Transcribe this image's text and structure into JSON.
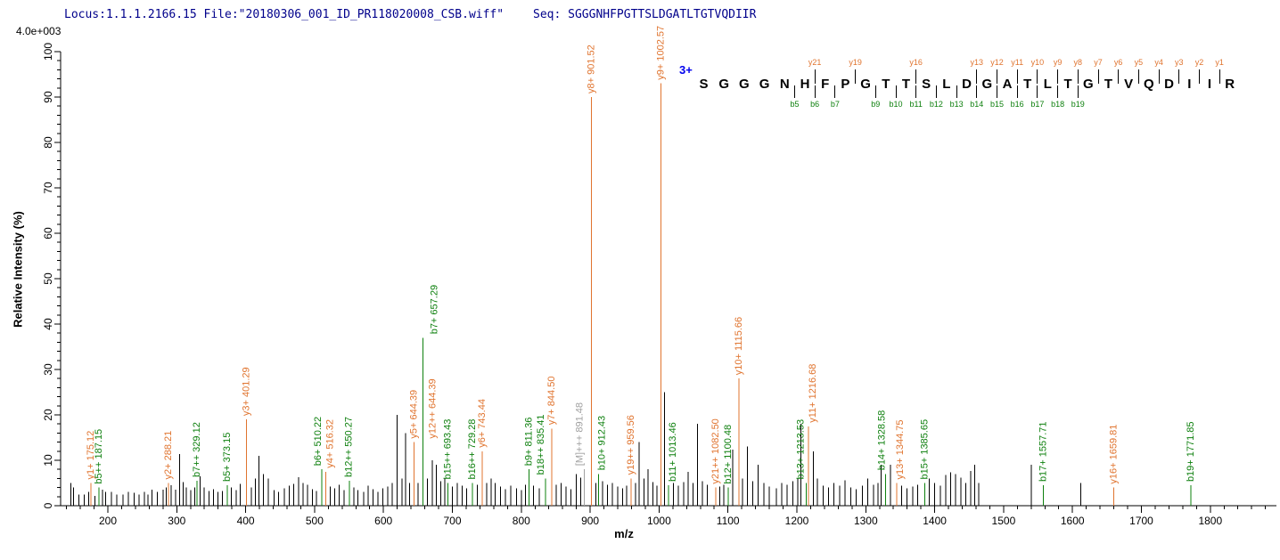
{
  "header": {
    "locus_file": "Locus:1.1.1.2166.15 File:\"20180306_001_ID_PR118020008_CSB.wiff\"",
    "seq_line": "Seq: SGGGNHFPGTTSLDGATLTGTVQDIIR"
  },
  "axis_max_label": "4.0e+003",
  "fragment_display": {
    "charge_label": "3+",
    "residues": "SGGGNHFPGTTSLDGATLTGTVQDIIR",
    "y_ions": {
      "6": "y21",
      "8": "y19",
      "11": "y16",
      "14": "y13",
      "15": "y12",
      "16": "y11",
      "17": "y10",
      "18": "y9",
      "19": "y8",
      "20": "y7",
      "21": "y6",
      "22": "y5",
      "23": "y4",
      "24": "y3",
      "25": "y2",
      "26": "y1"
    },
    "b_ions": {
      "5": "b5",
      "6": "b6",
      "7": "b7",
      "9": "b9",
      "10": "b10",
      "11": "b11",
      "12": "b12",
      "13": "b13",
      "14": "b14",
      "15": "b15",
      "16": "b16",
      "17": "b17",
      "18": "b18",
      "19": "b19"
    }
  },
  "chart_data": {
    "type": "bar",
    "subtype": "ms2-stick-spectrum",
    "title": "",
    "xlabel": "m/z",
    "ylabel": "Relative  Intensity (%)",
    "xlim": [
      135,
      1885
    ],
    "ylim": [
      0,
      100
    ],
    "x_major_tick_step": 100,
    "x_minor_tick_step": 20,
    "x_first_major": 200,
    "x_last_major": 1800,
    "y_major_tick_step": 10,
    "y_minor_tick_step": 2,
    "grid": false,
    "legend": "none",
    "colors": {
      "y_ion": "#e0742f",
      "b_ion": "#0e800e",
      "precursor": "#a0a0a0",
      "unlabeled": "#000000",
      "axis": "#000000"
    },
    "labeled_peaks": [
      {
        "mz": 175.12,
        "intensity": 5,
        "type": "y",
        "label": "y1+ 175.12"
      },
      {
        "mz": 187.15,
        "intensity": 4,
        "type": "b",
        "label": "b5++ 187.15"
      },
      {
        "mz": 288.21,
        "intensity": 5,
        "type": "y",
        "label": "y2+ 288.21"
      },
      {
        "mz": 329.12,
        "intensity": 5.5,
        "type": "b",
        "label": "b7++ 329.12"
      },
      {
        "mz": 373.15,
        "intensity": 4.5,
        "type": "b",
        "label": "b5+ 373.15"
      },
      {
        "mz": 401.29,
        "intensity": 19,
        "type": "y",
        "label": "y3+ 401.29"
      },
      {
        "mz": 510.22,
        "intensity": 8,
        "type": "b",
        "label": "b6+ 510.22",
        "ldx": -4
      },
      {
        "mz": 516.32,
        "intensity": 7.5,
        "type": "y",
        "label": "y4+ 516.32",
        "ldx": 5
      },
      {
        "mz": 550.27,
        "intensity": 5.5,
        "type": "b",
        "label": "b12++ 550.27"
      },
      {
        "mz": 644.39,
        "intensity": 14,
        "type": "y",
        "label": "y5+ 644.39"
      },
      {
        "mz": 644.39,
        "intensity": 14,
        "type": "y",
        "label": "y12++ 644.39",
        "ldx": 21,
        "line": false
      },
      {
        "mz": 657.29,
        "intensity": 37,
        "type": "b",
        "label": "b7+ 657.29",
        "ldx": 13
      },
      {
        "mz": 693.43,
        "intensity": 5,
        "type": "b",
        "label": "b15++ 693.43"
      },
      {
        "mz": 729.28,
        "intensity": 5,
        "type": "b",
        "label": "b16++ 729.28"
      },
      {
        "mz": 743.44,
        "intensity": 12,
        "type": "y",
        "label": "y6+ 743.44"
      },
      {
        "mz": 811.36,
        "intensity": 8,
        "type": "b",
        "label": "b9+ 811.36"
      },
      {
        "mz": 835.41,
        "intensity": 6,
        "type": "b",
        "label": "b18++ 835.41",
        "ldx": -5
      },
      {
        "mz": 844.5,
        "intensity": 17,
        "type": "y",
        "label": "y7+ 844.50"
      },
      {
        "mz": 891.48,
        "intensity": 8,
        "type": "M",
        "label": "[M]+++ 891.48",
        "ldx": -5
      },
      {
        "mz": 901.52,
        "intensity": 90,
        "type": "y",
        "label": "y8+ 901.52"
      },
      {
        "mz": 912.43,
        "intensity": 7,
        "type": "b",
        "label": "b10+ 912.43",
        "ldx": 4
      },
      {
        "mz": 959.56,
        "intensity": 6,
        "type": "y",
        "label": "y19++ 959.56"
      },
      {
        "mz": 1002.57,
        "intensity": 93,
        "type": "y",
        "label": "y9+ 1002.57"
      },
      {
        "mz": 1013.46,
        "intensity": 4.5,
        "type": "b",
        "label": "b11+ 1013.46",
        "ldx": 5
      },
      {
        "mz": 1082.5,
        "intensity": 4,
        "type": "y",
        "label": "y21++ 1082.50"
      },
      {
        "mz": 1100.48,
        "intensity": 4,
        "type": "b",
        "label": "b12+ 1100.48"
      },
      {
        "mz": 1115.66,
        "intensity": 28,
        "type": "y",
        "label": "y10+ 1115.66"
      },
      {
        "mz": 1213.53,
        "intensity": 5,
        "type": "b",
        "label": "b13+ 1213.53",
        "ldx": -6
      },
      {
        "mz": 1216.68,
        "intensity": 17.5,
        "type": "y",
        "label": "y11+ 1216.68",
        "ldx": 5
      },
      {
        "mz": 1328.58,
        "intensity": 7,
        "type": "b",
        "label": "b14+ 1328.58",
        "ldx": -4
      },
      {
        "mz": 1344.75,
        "intensity": 5,
        "type": "y",
        "label": "y13+ 1344.75",
        "ldx": 4
      },
      {
        "mz": 1385.65,
        "intensity": 5,
        "type": "b",
        "label": "b15+ 1385.65"
      },
      {
        "mz": 1557.71,
        "intensity": 4.5,
        "type": "b",
        "label": "b17+ 1557.71"
      },
      {
        "mz": 1659.81,
        "intensity": 4,
        "type": "y",
        "label": "y16+ 1659.81"
      },
      {
        "mz": 1771.85,
        "intensity": 4.5,
        "type": "b",
        "label": "b19+ 1771.85"
      }
    ],
    "unlabeled_peaks": [
      [
        146,
        5
      ],
      [
        150,
        4
      ],
      [
        158,
        2.5
      ],
      [
        166,
        2.5
      ],
      [
        172,
        3
      ],
      [
        181,
        2.2
      ],
      [
        192,
        3.5
      ],
      [
        197,
        3
      ],
      [
        205,
        3
      ],
      [
        213,
        2.5
      ],
      [
        222,
        2.5
      ],
      [
        230,
        3
      ],
      [
        238,
        2.8
      ],
      [
        245,
        2.5
      ],
      [
        253,
        3
      ],
      [
        258,
        2.5
      ],
      [
        264,
        3.5
      ],
      [
        272,
        3
      ],
      [
        280,
        3.5
      ],
      [
        285,
        4
      ],
      [
        292,
        4.5
      ],
      [
        298,
        3.5
      ],
      [
        304,
        11.4
      ],
      [
        309,
        5.2
      ],
      [
        314,
        4
      ],
      [
        320,
        3.4
      ],
      [
        326,
        4
      ],
      [
        334,
        6.5
      ],
      [
        340,
        4
      ],
      [
        347,
        3.2
      ],
      [
        353,
        3.6
      ],
      [
        360,
        3
      ],
      [
        366,
        3.2
      ],
      [
        379,
        4
      ],
      [
        386,
        3.4
      ],
      [
        392,
        4.8
      ],
      [
        408,
        4
      ],
      [
        414,
        6
      ],
      [
        419,
        11
      ],
      [
        426,
        7
      ],
      [
        433,
        6
      ],
      [
        441,
        3.4
      ],
      [
        448,
        3
      ],
      [
        456,
        3.8
      ],
      [
        463,
        4.4
      ],
      [
        470,
        4.8
      ],
      [
        477,
        6.3
      ],
      [
        483,
        5
      ],
      [
        490,
        4.6
      ],
      [
        497,
        3.6
      ],
      [
        503,
        3.2
      ],
      [
        523,
        4.2
      ],
      [
        529,
        3.8
      ],
      [
        536,
        4.6
      ],
      [
        543,
        3.4
      ],
      [
        557,
        4
      ],
      [
        563,
        3.4
      ],
      [
        571,
        3
      ],
      [
        578,
        4.4
      ],
      [
        585,
        3.6
      ],
      [
        592,
        3
      ],
      [
        599,
        3.8
      ],
      [
        606,
        4.2
      ],
      [
        613,
        5
      ],
      [
        620,
        20
      ],
      [
        627,
        6
      ],
      [
        632,
        16
      ],
      [
        638,
        5
      ],
      [
        650,
        5
      ],
      [
        664,
        6
      ],
      [
        671,
        10
      ],
      [
        677,
        9
      ],
      [
        683,
        5.4
      ],
      [
        689,
        6
      ],
      [
        700,
        4.2
      ],
      [
        707,
        5
      ],
      [
        714,
        4.4
      ],
      [
        721,
        3.8
      ],
      [
        736,
        4.6
      ],
      [
        750,
        5
      ],
      [
        756,
        6
      ],
      [
        762,
        5
      ],
      [
        770,
        4.2
      ],
      [
        777,
        3.6
      ],
      [
        785,
        4.4
      ],
      [
        793,
        3.8
      ],
      [
        800,
        3.4
      ],
      [
        806,
        4.6
      ],
      [
        818,
        4.4
      ],
      [
        826,
        3.8
      ],
      [
        851,
        4.6
      ],
      [
        858,
        5
      ],
      [
        865,
        4.2
      ],
      [
        872,
        3.6
      ],
      [
        880,
        7
      ],
      [
        886,
        6.2
      ],
      [
        908,
        5
      ],
      [
        918,
        5.4
      ],
      [
        925,
        4.6
      ],
      [
        932,
        5
      ],
      [
        940,
        4.2
      ],
      [
        947,
        3.8
      ],
      [
        953,
        4.4
      ],
      [
        966,
        5
      ],
      [
        971,
        14
      ],
      [
        978,
        6
      ],
      [
        984,
        8
      ],
      [
        991,
        5.2
      ],
      [
        997,
        4.4
      ],
      [
        1008,
        25
      ],
      [
        1021,
        5
      ],
      [
        1028,
        4.4
      ],
      [
        1036,
        5.2
      ],
      [
        1042,
        7.5
      ],
      [
        1049,
        5
      ],
      [
        1056,
        18
      ],
      [
        1063,
        5.4
      ],
      [
        1070,
        4.6
      ],
      [
        1088,
        4.2
      ],
      [
        1094,
        4.6
      ],
      [
        1107,
        12.4
      ],
      [
        1121,
        6
      ],
      [
        1128,
        13
      ],
      [
        1136,
        5.4
      ],
      [
        1144,
        9
      ],
      [
        1152,
        5
      ],
      [
        1160,
        4.2
      ],
      [
        1170,
        3.8
      ],
      [
        1178,
        5
      ],
      [
        1186,
        4.6
      ],
      [
        1194,
        5.4
      ],
      [
        1201,
        6
      ],
      [
        1206,
        18
      ],
      [
        1224,
        12
      ],
      [
        1230,
        6
      ],
      [
        1238,
        4.4
      ],
      [
        1246,
        4
      ],
      [
        1254,
        5
      ],
      [
        1262,
        4.4
      ],
      [
        1270,
        5.6
      ],
      [
        1278,
        4
      ],
      [
        1286,
        3.6
      ],
      [
        1295,
        4.4
      ],
      [
        1303,
        6
      ],
      [
        1311,
        4.6
      ],
      [
        1318,
        5
      ],
      [
        1322,
        9
      ],
      [
        1336,
        9
      ],
      [
        1352,
        4.4
      ],
      [
        1360,
        3.8
      ],
      [
        1368,
        4.2
      ],
      [
        1375,
        4.6
      ],
      [
        1392,
        6
      ],
      [
        1400,
        5
      ],
      [
        1408,
        4.4
      ],
      [
        1416,
        6.8
      ],
      [
        1423,
        7.4
      ],
      [
        1430,
        7
      ],
      [
        1438,
        6.2
      ],
      [
        1445,
        5
      ],
      [
        1452,
        7.6
      ],
      [
        1458,
        9
      ],
      [
        1464,
        5
      ],
      [
        1540,
        9
      ],
      [
        1612,
        5
      ]
    ]
  }
}
